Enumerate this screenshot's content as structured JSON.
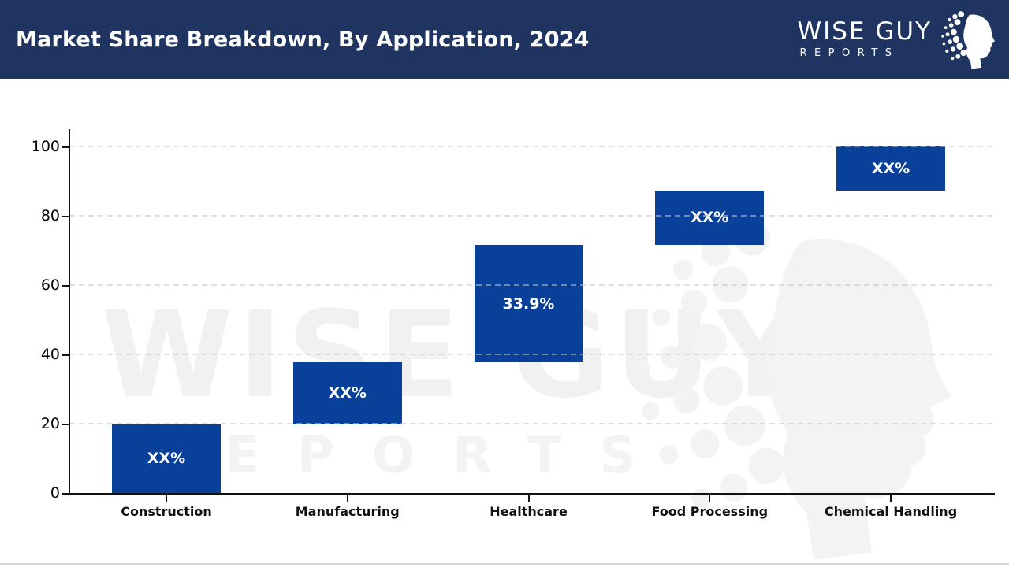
{
  "header": {
    "title": "Market Share Breakdown, By Application, 2024",
    "logo": {
      "primary": "WISE GUY",
      "secondary": "REPORTS"
    }
  },
  "watermark": {
    "primary": "WISE GUY",
    "secondary": "REPORTS"
  },
  "chart_data": {
    "type": "bar",
    "variant": "cumulative-waterfall",
    "title": "Market Share Breakdown, By Application, 2024",
    "categories": [
      "Construction",
      "Manufacturing",
      "Healthcare",
      "Food Processing",
      "Chemical Handling"
    ],
    "segments": [
      {
        "category": "Construction",
        "start": 0,
        "end": 19.8,
        "label": "XX%"
      },
      {
        "category": "Manufacturing",
        "start": 19.8,
        "end": 37.7,
        "label": "XX%"
      },
      {
        "category": "Healthcare",
        "start": 37.7,
        "end": 71.6,
        "label": "33.9%"
      },
      {
        "category": "Food Processing",
        "start": 71.6,
        "end": 87.3,
        "label": "XX%"
      },
      {
        "category": "Chemical Handling",
        "start": 87.3,
        "end": 100,
        "label": "XX%"
      }
    ],
    "y_ticks": [
      0,
      20,
      40,
      60,
      80,
      100
    ],
    "ylim": [
      0,
      105
    ],
    "xlabel": "",
    "ylabel": "",
    "grid": "dashed-horizontal-over-bars",
    "legend": "none",
    "bar_color": "#08409a",
    "bar_label_color": "#ffffff"
  },
  "colors": {
    "header_bg": "#1f3461",
    "axis": "#111111",
    "grid": "#dcdcdc",
    "watermark": "#f1f1f1",
    "bottom_divider": "#d8d8d8"
  }
}
